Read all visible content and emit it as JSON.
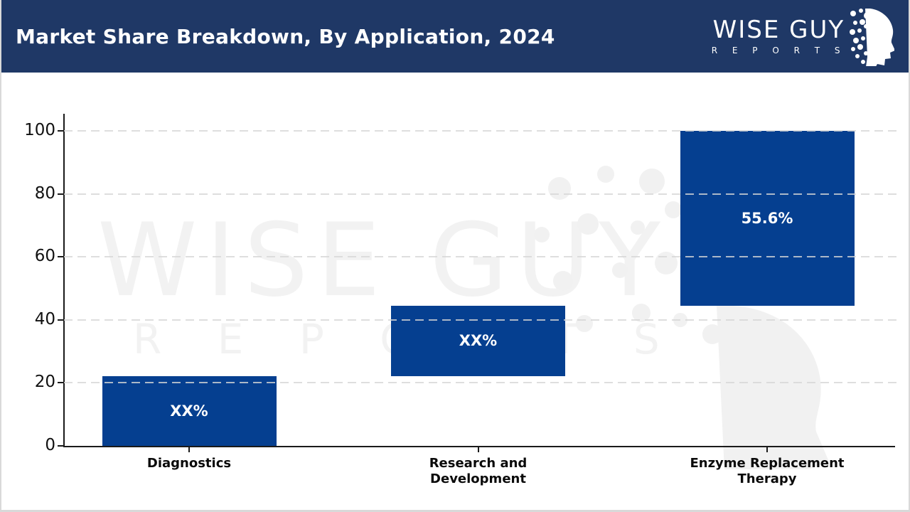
{
  "header": {
    "title": "Market Share Breakdown, By Application, 2024",
    "logo": {
      "line1": "WISE GUY",
      "line2": "R E P O R T S"
    }
  },
  "watermark": {
    "line1": "WISE GUY",
    "line2": "R E P O R T S"
  },
  "colors": {
    "header_bg": "#1f3866",
    "bar": "#053f90",
    "bar_label": "#ffffff",
    "grid": "#d6d6d6",
    "axis": "#1a1a1a",
    "tick_label": "#111111",
    "watermark": "#f2f2f2",
    "page_border": "#d9d9d9"
  },
  "chart_data": {
    "type": "bar",
    "subtype": "waterfall-stacked-percent",
    "title": "Market Share Breakdown, By Application, 2024",
    "categories": [
      "Diagnostics",
      "Research and\nDevelopment",
      "Enzyme Replacement\nTherapy"
    ],
    "bars": [
      {
        "category": "Diagnostics",
        "start": 0,
        "end": 22.2,
        "label": "XX%"
      },
      {
        "category": "Research and Development",
        "start": 22.2,
        "end": 44.4,
        "label": "XX%"
      },
      {
        "category": "Enzyme Replacement Therapy",
        "start": 44.4,
        "end": 100,
        "label": "55.6%"
      }
    ],
    "ylim": [
      0,
      100
    ],
    "yticks": [
      0,
      20,
      40,
      60,
      80,
      100
    ],
    "xlabel": "",
    "ylabel": "",
    "grid": "horizontal-dashed",
    "legend_position": "none"
  }
}
